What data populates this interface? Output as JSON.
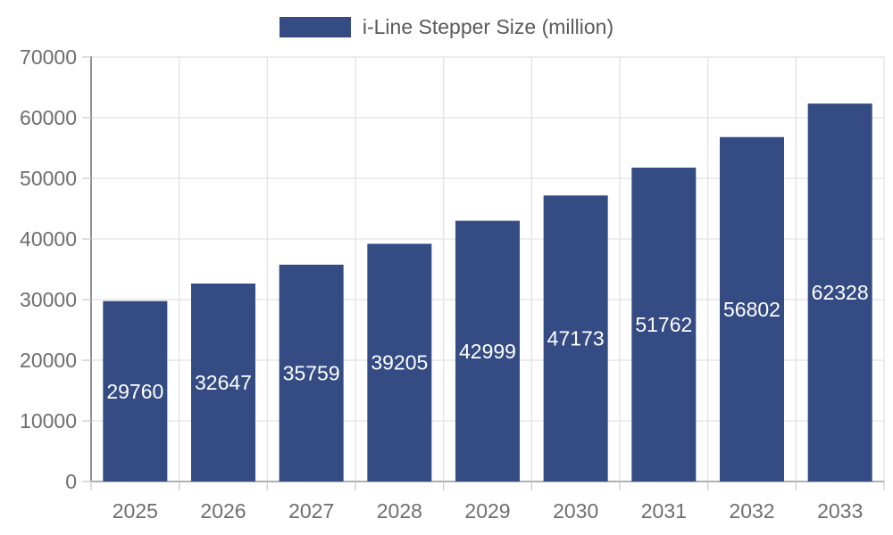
{
  "chart_data": {
    "type": "bar",
    "title": "",
    "legend": {
      "label": "i-Line Stepper Size (million)",
      "position": "top-center"
    },
    "categories": [
      "2025",
      "2026",
      "2027",
      "2028",
      "2029",
      "2030",
      "2031",
      "2032",
      "2033"
    ],
    "series": [
      {
        "name": "i-Line Stepper Size (million)",
        "values": [
          29760,
          32647,
          35759,
          39205,
          42999,
          47173,
          51762,
          56802,
          62328
        ]
      }
    ],
    "xlabel": "",
    "ylabel": "",
    "ylim": [
      0,
      70000
    ],
    "ytick_interval": 10000,
    "ytick_labels": [
      "0",
      "10000",
      "20000",
      "30000",
      "40000",
      "50000",
      "60000",
      "70000"
    ],
    "grid": true,
    "value_labels_inside_bars": true,
    "colors": {
      "bar": "#344b84",
      "value_label": "#ffffff",
      "axis_label": "#6e6e6e",
      "legend_text": "#5a5a5a",
      "gridline": "#e2e2e2",
      "y_axis_line": "#909090",
      "x_axis_line": "#b0b0b0",
      "tick": "#cccccc",
      "background": "#ffffff"
    }
  }
}
